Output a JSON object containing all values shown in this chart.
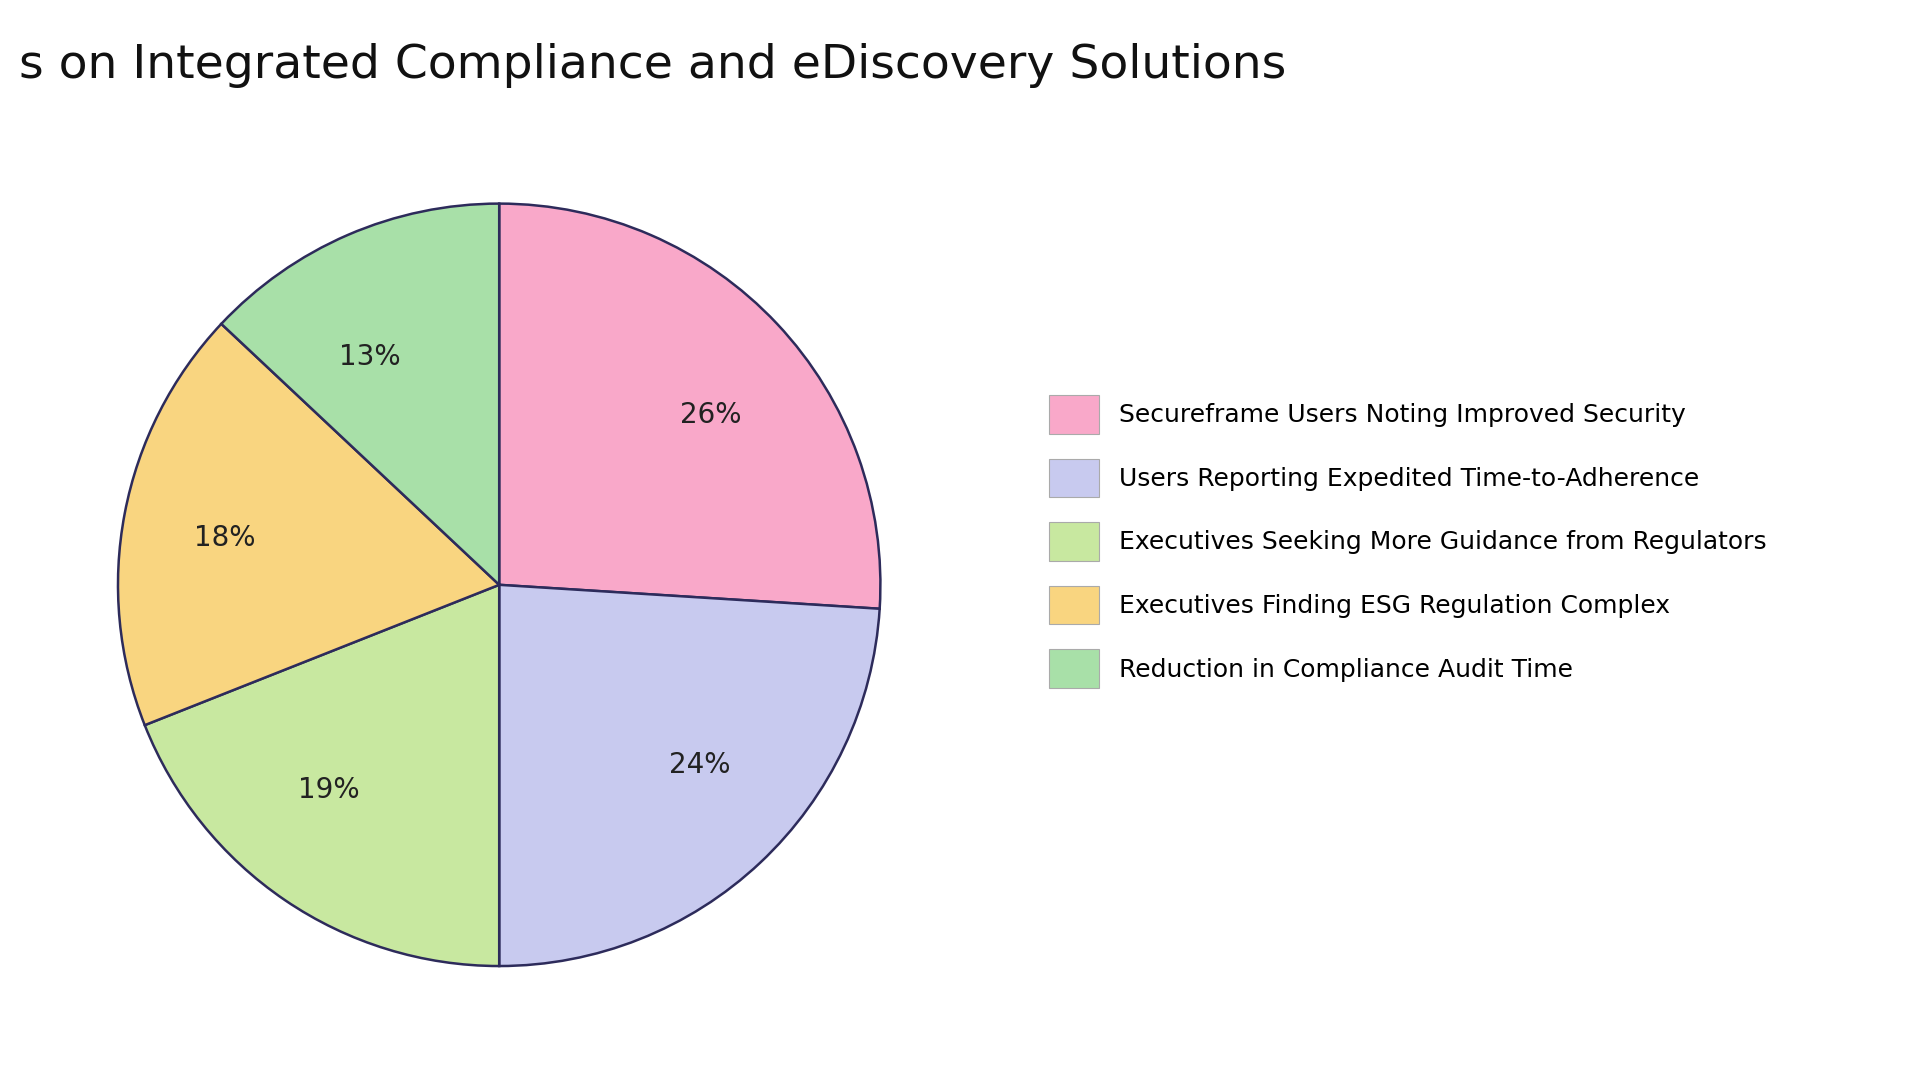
{
  "title": "s on Integrated Compliance and eDiscovery Solutions",
  "slices": [
    26,
    24,
    19,
    18,
    13
  ],
  "labels": [
    "26%",
    "24%",
    "19%",
    "18%",
    "13%"
  ],
  "colors": [
    "#F9A8C9",
    "#C8CAEF",
    "#C8E8A0",
    "#F9D580",
    "#A8E0A8"
  ],
  "legend_labels": [
    "Secureframe Users Noting Improved Security",
    "Users Reporting Expedited Time-to-Adherence",
    "Executives Seeking More Guidance from Regulators",
    "Executives Finding ESG Regulation Complex",
    "Reduction in Compliance Audit Time"
  ],
  "edge_color": "#2D2B5B",
  "edge_width": 1.8,
  "background_color": "#FFFFFF",
  "title_fontsize": 34,
  "label_fontsize": 20,
  "legend_fontsize": 18,
  "startangle": 90
}
